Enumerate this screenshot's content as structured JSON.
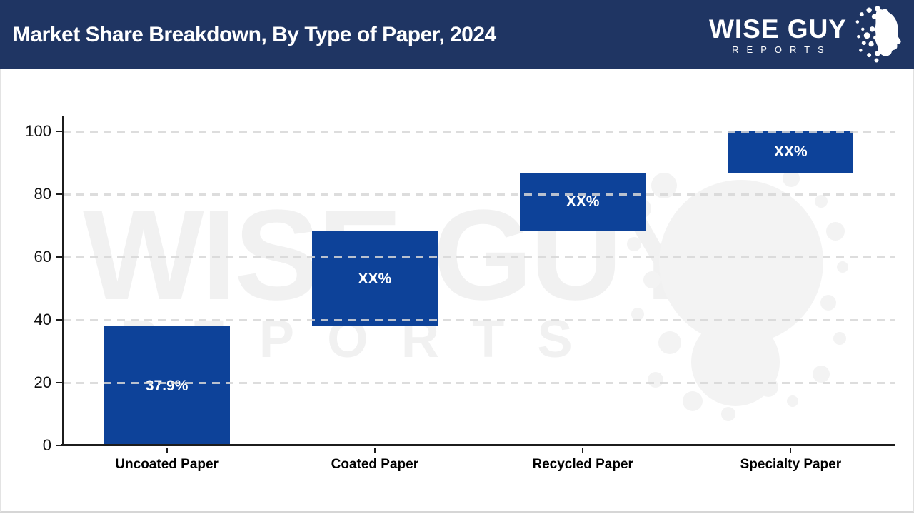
{
  "header": {
    "title": "Market Share Breakdown, By Type of Paper, 2024",
    "logo": {
      "line1": "WISE GUY",
      "line2": "REPORTS"
    }
  },
  "watermark": {
    "line1": "WISE GUY",
    "line2": "REPORTS"
  },
  "colors": {
    "header_bg": "#1f3563",
    "bar": "#0d4299",
    "bar_label": "#ffffff",
    "axis": "#1c1c1c",
    "grid": "#d7d7d7",
    "watermark": "#f1f1f1",
    "title_text": "#ffffff",
    "tick_text": "#111111"
  },
  "chart_data": {
    "type": "bar",
    "variant": "waterfall-floating-bars",
    "title": "Market Share Breakdown, By Type of Paper, 2024",
    "categories": [
      "Uncoated Paper",
      "Coated Paper",
      "Recycled Paper",
      "Specialty Paper"
    ],
    "series": [
      {
        "category": "Uncoated Paper",
        "label": "37.9%",
        "start": 0,
        "end": 37.9
      },
      {
        "category": "Coated Paper",
        "label": "XX%",
        "start": 37.9,
        "end": 68.1
      },
      {
        "category": "Recycled Paper",
        "label": "XX%",
        "start": 68.1,
        "end": 86.9
      },
      {
        "category": "Specialty Paper",
        "label": "XX%",
        "start": 86.9,
        "end": 100
      }
    ],
    "xlabel": "",
    "ylabel": "",
    "yticks": [
      0,
      20,
      40,
      60,
      80,
      100
    ],
    "ylim": [
      0,
      105
    ],
    "grid": "horizontal-dashed",
    "legend": "none"
  }
}
